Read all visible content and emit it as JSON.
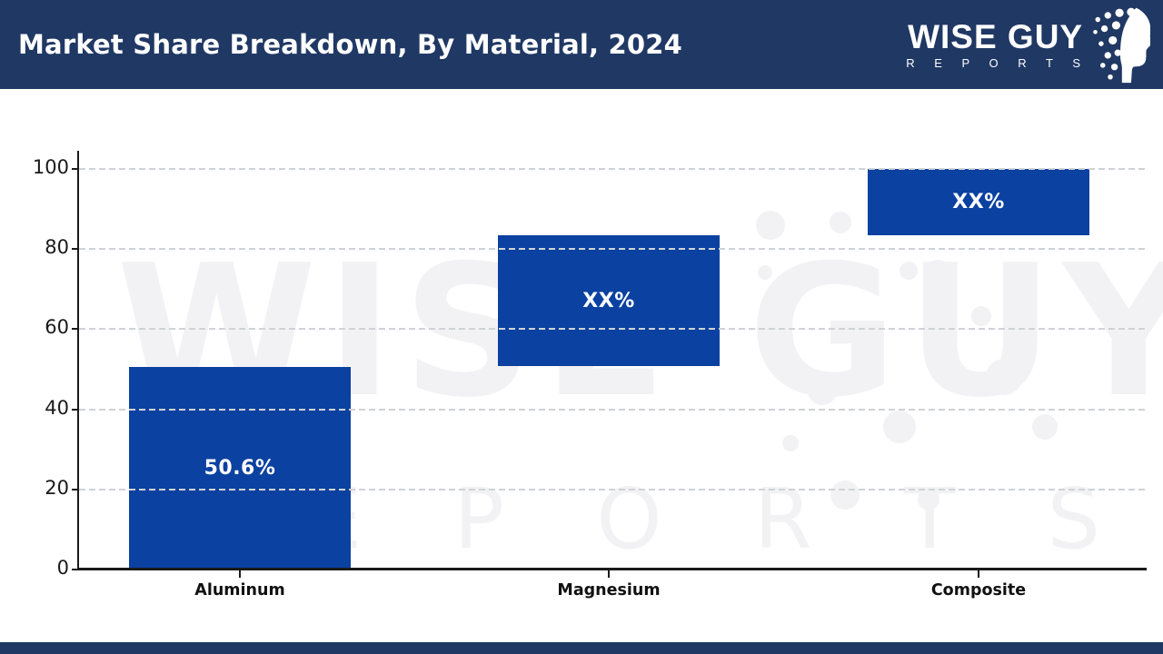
{
  "header": {
    "title": "Market Share Breakdown, By Material, 2024",
    "logo": {
      "wordmark": "WISE GUY",
      "reports": "R E P O R T S"
    }
  },
  "watermark": {
    "line1": "WISE GUY",
    "line2": "R E P O R T S"
  },
  "chart_data": {
    "type": "bar",
    "subtype": "floating-range-bars",
    "title": "Market Share Breakdown, By Material, 2024",
    "categories": [
      "Aluminum",
      "Magnesium",
      "Composite"
    ],
    "segments": [
      {
        "category": "Aluminum",
        "start": 0,
        "end": 50.6,
        "label": "50.6%"
      },
      {
        "category": "Magnesium",
        "start": 50.7,
        "end": 83.4,
        "label": "XX%"
      },
      {
        "category": "Composite",
        "start": 83.5,
        "end": 100,
        "label": "XX%"
      }
    ],
    "ylim": [
      0,
      100
    ],
    "yticks": [
      0,
      20,
      40,
      60,
      80,
      100
    ],
    "xlabel": "",
    "ylabel": "",
    "grid": "horizontal-dashed",
    "grid_on_top_of_bars": true,
    "legend": "none",
    "bar_color": "#0b41a0",
    "bar_label_color": "#ffffff"
  },
  "colors": {
    "header_bg": "#203864",
    "footer_bg": "#203864",
    "bar": "#0b41a0",
    "grid": "#cfd2d6",
    "axis": "#1a1a1a",
    "watermark": "#f2f2f4",
    "title_text": "#ffffff"
  }
}
